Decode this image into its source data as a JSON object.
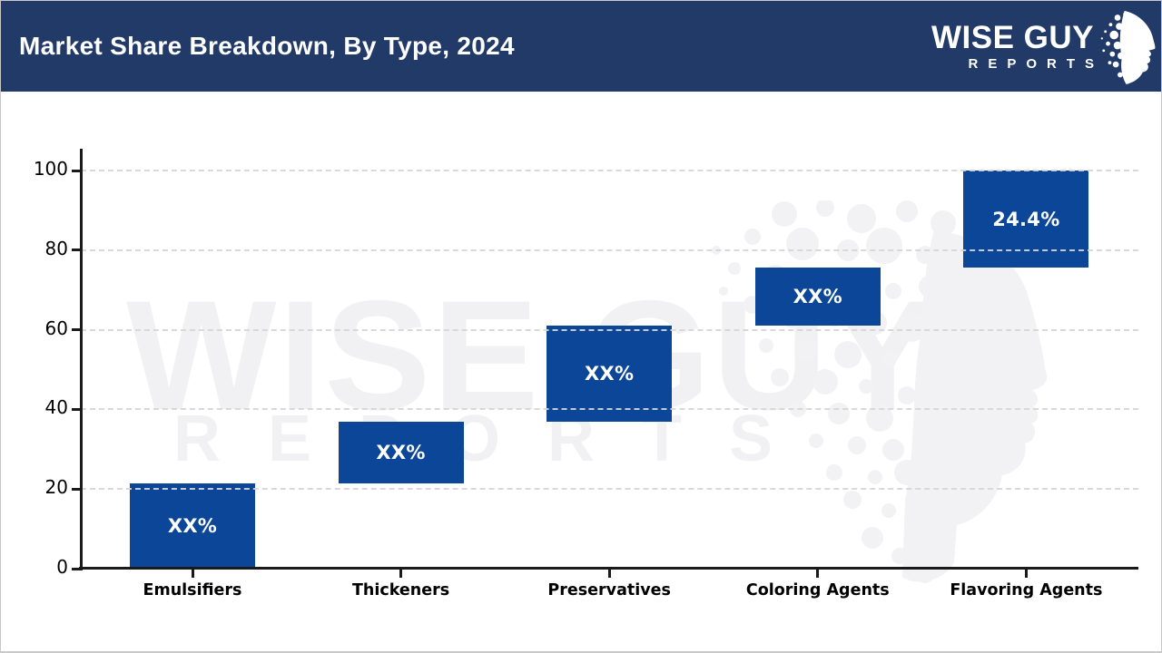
{
  "header": {
    "title": "Market Share Breakdown, By Type, 2024",
    "bg_color": "#213a68"
  },
  "brand": {
    "name": "WISE GUY",
    "sub": "REPORTS"
  },
  "watermark": {
    "line1": "WISE GUY",
    "line2": "REPORTS"
  },
  "chart_data": {
    "type": "bar",
    "subtype": "waterfall",
    "title": "Market Share Breakdown, By Type, 2024",
    "categories": [
      "Emulsifiers",
      "Thickeners",
      "Preservatives",
      "Coloring Agents",
      "Flavoring Agents"
    ],
    "bars": [
      {
        "category": "Emulsifiers",
        "start": 0,
        "end": 21.5,
        "label": "XX%"
      },
      {
        "category": "Thickeners",
        "start": 21.5,
        "end": 37,
        "label": "XX%"
      },
      {
        "category": "Preservatives",
        "start": 37,
        "end": 61,
        "label": "XX%"
      },
      {
        "category": "Coloring Agents",
        "start": 61,
        "end": 75.6,
        "label": "XX%"
      },
      {
        "category": "Flavoring Agents",
        "start": 75.6,
        "end": 100,
        "label": "24.4%"
      }
    ],
    "yticks": [
      0,
      20,
      40,
      60,
      80,
      100
    ],
    "ylim": [
      0,
      105
    ],
    "xlabel": "",
    "ylabel": "",
    "grid": "horizontal-dashed",
    "legend": false,
    "bar_color": "#0b4699",
    "bar_label_color": "#ffffff",
    "axis_color": "#1a1a1a",
    "grid_color": "#d6d6d6"
  }
}
